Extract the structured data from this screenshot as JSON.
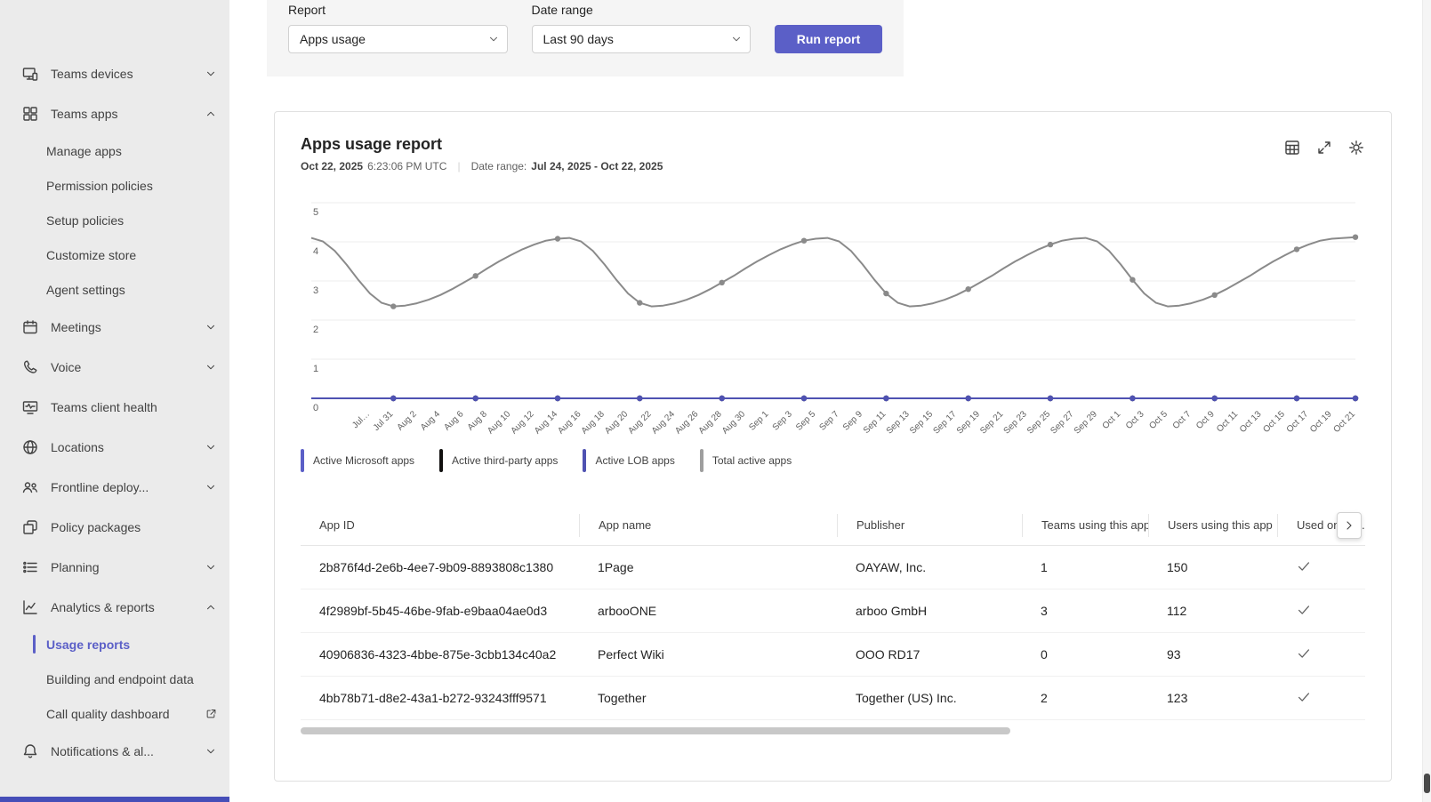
{
  "sidebar": {
    "items": [
      {
        "label": "Teams devices",
        "icon": "devices",
        "chevron": "down",
        "type": "top"
      },
      {
        "label": "Teams apps",
        "icon": "apps",
        "chevron": "up",
        "type": "top"
      },
      {
        "label": "Manage apps",
        "type": "sub"
      },
      {
        "label": "Permission policies",
        "type": "sub"
      },
      {
        "label": "Setup policies",
        "type": "sub"
      },
      {
        "label": "Customize store",
        "type": "sub"
      },
      {
        "label": "Agent settings",
        "type": "sub"
      },
      {
        "label": "Meetings",
        "icon": "calendar",
        "chevron": "down",
        "type": "top"
      },
      {
        "label": "Voice",
        "icon": "phone",
        "chevron": "down",
        "type": "top"
      },
      {
        "label": "Teams client health",
        "icon": "health",
        "type": "top"
      },
      {
        "label": "Locations",
        "icon": "globe",
        "chevron": "down",
        "type": "top"
      },
      {
        "label": "Frontline deploy...",
        "icon": "people",
        "chevron": "down",
        "type": "top"
      },
      {
        "label": "Policy packages",
        "icon": "packages",
        "type": "top"
      },
      {
        "label": "Planning",
        "icon": "planning",
        "chevron": "down",
        "type": "top"
      },
      {
        "label": "Analytics & reports",
        "icon": "analytics",
        "chevron": "up",
        "type": "top"
      },
      {
        "label": "Usage reports",
        "type": "sub",
        "selected": true
      },
      {
        "label": "Building and endpoint data",
        "type": "sub"
      },
      {
        "label": "Call quality dashboard",
        "type": "sub",
        "external": true
      },
      {
        "label": "Notifications & al...",
        "icon": "bell",
        "chevron": "down",
        "type": "top"
      }
    ]
  },
  "filters": {
    "report_label": "Report",
    "report_value": "Apps usage",
    "daterange_label": "Date range",
    "daterange_value": "Last 90 days",
    "run_button": "Run report"
  },
  "report": {
    "title": "Apps usage report",
    "generated_date": "Oct 22, 2025",
    "generated_time": "6:23:06 PM UTC",
    "separator": "|",
    "date_range_label": "Date range:",
    "date_range": "Jul 24, 2025 - Oct 22, 2025"
  },
  "chart_data": {
    "type": "line",
    "title": "Apps usage report",
    "days": 90,
    "ylim": [
      0,
      5
    ],
    "y_ticks": [
      0,
      1,
      2,
      3,
      4,
      5
    ],
    "grid": true,
    "legend_position": "bottom",
    "x_tick_first_day": 5,
    "x_tick_step_days": 2,
    "marker_every_days": 7,
    "x_tick_labels": [
      "Jul…",
      "Jul 31",
      "Aug 2",
      "Aug 4",
      "Aug 6",
      "Aug 8",
      "Aug 10",
      "Aug 12",
      "Aug 14",
      "Aug 16",
      "Aug 18",
      "Aug 20",
      "Aug 22",
      "Aug 24",
      "Aug 26",
      "Aug 28",
      "Aug 30",
      "Sep 1",
      "Sep 3",
      "Sep 5",
      "Sep 7",
      "Sep 9",
      "Sep 11",
      "Sep 13",
      "Sep 15",
      "Sep 17",
      "Sep 19",
      "Sep 21",
      "Sep 23",
      "Sep 25",
      "Sep 27",
      "Sep 29",
      "Oct 1",
      "Oct 3",
      "Oct 5",
      "Oct 7",
      "Oct 9",
      "Oct 11",
      "Oct 13",
      "Oct 15",
      "Oct 17",
      "Oct 19",
      "Oct 21"
    ],
    "series": [
      {
        "name": "Active Microsoft apps",
        "color": "#5b5fc7",
        "constant": 0
      },
      {
        "name": "Active third-party apps",
        "color": "#11100f",
        "constant": 0
      },
      {
        "name": "Active LOB apps",
        "color": "#4f52b2",
        "constant": 0
      },
      {
        "name": "Total active apps",
        "color": "#9e9e9e",
        "line_color": "#8a8a8a",
        "values": [
          4.1,
          4.01,
          3.77,
          3.42,
          3.03,
          2.68,
          2.44,
          2.35,
          2.37,
          2.43,
          2.52,
          2.64,
          2.79,
          2.96,
          3.13,
          3.32,
          3.5,
          3.66,
          3.81,
          3.93,
          4.03,
          4.08,
          4.1,
          4.01,
          3.77,
          3.42,
          3.03,
          2.68,
          2.44,
          2.35,
          2.37,
          2.43,
          2.52,
          2.64,
          2.79,
          2.96,
          3.13,
          3.32,
          3.5,
          3.66,
          3.81,
          3.93,
          4.03,
          4.08,
          4.1,
          4.01,
          3.77,
          3.42,
          3.03,
          2.68,
          2.44,
          2.35,
          2.37,
          2.43,
          2.52,
          2.64,
          2.79,
          2.96,
          3.13,
          3.32,
          3.5,
          3.66,
          3.81,
          3.93,
          4.03,
          4.08,
          4.1,
          4.01,
          3.77,
          3.42,
          3.03,
          2.68,
          2.44,
          2.35,
          2.37,
          2.43,
          2.52,
          2.64,
          2.79,
          2.96,
          3.13,
          3.32,
          3.5,
          3.66,
          3.81,
          3.93,
          4.03,
          4.08,
          4.1,
          4.12
        ]
      }
    ]
  },
  "table": {
    "headers": [
      "App ID",
      "App name",
      "Publisher",
      "Teams using this app",
      "Users using this app",
      "Used on W…"
    ],
    "rows": [
      {
        "app_id": "2b876f4d-2e6b-4ee7-9b09-8893808c1380",
        "app_name": "1Page",
        "publisher": "OAYAW, Inc.",
        "teams": "1",
        "users": "150",
        "used_on_windows": true
      },
      {
        "app_id": "4f2989bf-5b45-46be-9fab-e9baa04ae0d3",
        "app_name": "arbooONE",
        "publisher": "arboo GmbH",
        "teams": "3",
        "users": "112",
        "used_on_windows": true
      },
      {
        "app_id": "40906836-4323-4bbe-875e-3cbb134c40a2",
        "app_name": "Perfect Wiki",
        "publisher": "OOO RD17",
        "teams": "0",
        "users": "93",
        "used_on_windows": true
      },
      {
        "app_id": "4bb78b71-d8e2-43a1-b272-93243fff9571",
        "app_name": "Together",
        "publisher": "Together (US) Inc.",
        "teams": "2",
        "users": "123",
        "used_on_windows": true
      }
    ]
  }
}
